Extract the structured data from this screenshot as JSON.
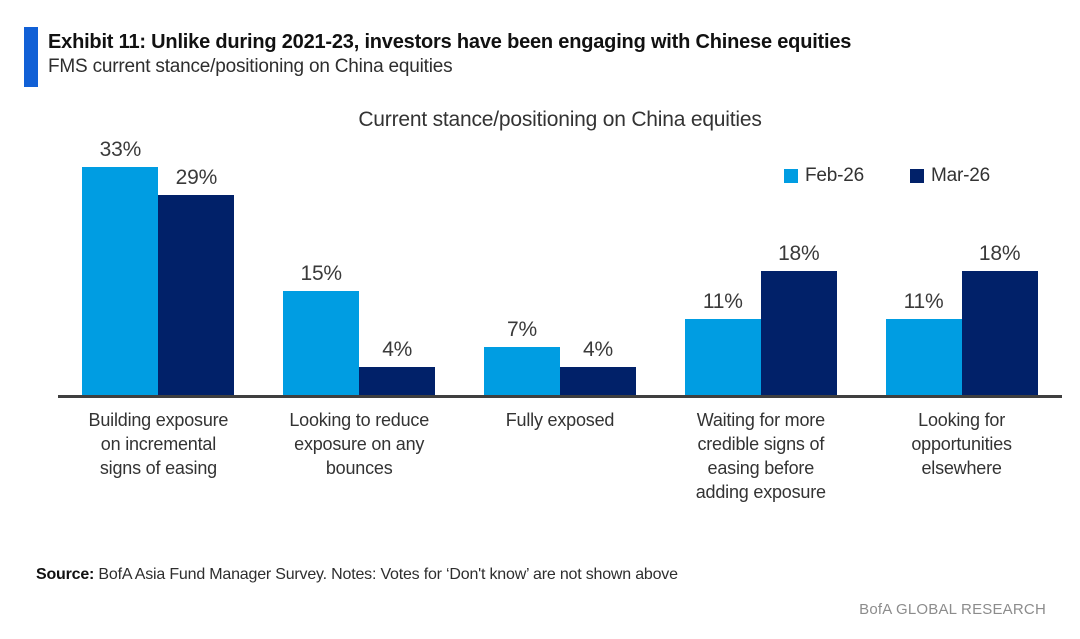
{
  "header": {
    "exhibit_title": "Exhibit 11: Unlike during 2021-23, investors have been engaging with Chinese equities",
    "subtitle": "FMS current stance/positioning on China equities"
  },
  "accent_color": "#1160d6",
  "chart_data": {
    "type": "bar",
    "title": "Current stance/positioning on China equities",
    "categories": [
      "Building exposure on incremental signs of easing",
      "Looking to reduce exposure on any bounces",
      "Fully exposed",
      "Waiting for more credible signs of easing before adding exposure",
      "Looking for opportunities elsewhere"
    ],
    "category_lines": [
      [
        "Building exposure",
        "on incremental",
        "signs of easing"
      ],
      [
        "Looking to reduce",
        "exposure on any",
        "bounces"
      ],
      [
        "Fully exposed"
      ],
      [
        "Waiting for more",
        "credible signs of",
        "easing before",
        "adding exposure"
      ],
      [
        "Looking for",
        "opportunities",
        "elsewhere"
      ]
    ],
    "series": [
      {
        "name": "Feb-26",
        "color": "#009de2",
        "values": [
          33,
          15,
          7,
          11,
          11
        ]
      },
      {
        "name": "Mar-26",
        "color": "#012169",
        "values": [
          29,
          4,
          4,
          18,
          18
        ]
      }
    ],
    "value_suffix": "%",
    "ylim": [
      0,
      35
    ],
    "grid": false,
    "legend_position": "top-right",
    "axis_color": "#3f3f3f"
  },
  "footer": {
    "source_label": "Source:",
    "source_text": " BofA Asia Fund Manager Survey. Notes: Votes for ‘Don't know’ are not shown above",
    "brand": "BofA GLOBAL RESEARCH"
  }
}
